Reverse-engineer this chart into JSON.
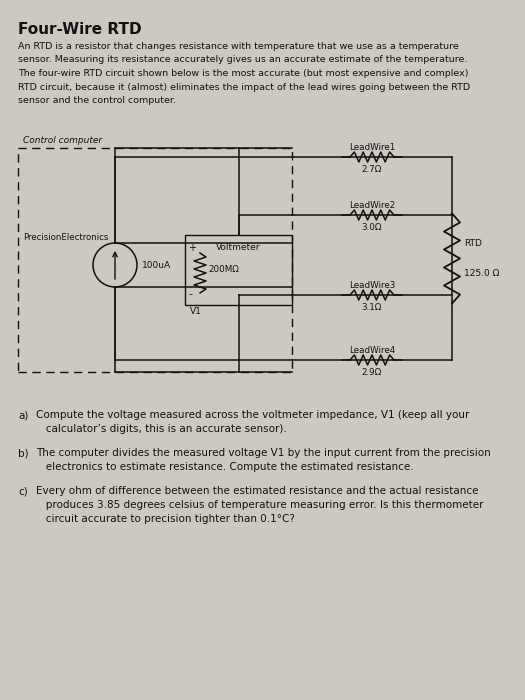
{
  "title": "Four-Wire RTD",
  "intro_text": "An RTD is a resistor that changes resistance with temperature that we use as a temperature\nsensor. Measuring its resistance accurately gives us an accurate estimate of the temperature.\nThe four-wire RTD circuit shown below is the most accurate (but most expensive and complex)\nRTD circuit, because it (almost) eliminates the impact of the lead wires going between the RTD\nsensor and the control computer.",
  "control_computer_label": "Control computer",
  "precision_electronics_label": "PrecisionElectronics",
  "current_label": "100uA",
  "voltmeter_label": "Voltmeter",
  "voltmeter_impedance": "200MΩ",
  "v1_label": "V1",
  "plus_label": "+",
  "minus_label": "-",
  "leadwire1_label": "LeadWire1",
  "leadwire1_val": "2.7Ω",
  "leadwire2_label": "LeadWire2",
  "leadwire2_val": "3.0Ω",
  "leadwire3_label": "LeadWire3",
  "leadwire3_val": "3.1Ω",
  "leadwire4_label": "LeadWire4",
  "leadwire4_val": "2.9Ω",
  "rtd_label": "RTD",
  "rtd_val": "125.0 Ω",
  "q_a_prefix": "a)",
  "q_a_text": "Compute the voltage measured across the voltmeter impedance, V1 (keep all your\n   calculator’s digits, this is an accurate sensor).",
  "q_b_prefix": "b)",
  "q_b_text": "The computer divides the measured voltage V1 by the input current from the precision\n   electronics to estimate resistance. Compute the estimated resistance.",
  "q_c_prefix": "c)",
  "q_c_text": "Every ohm of difference between the estimated resistance and the actual resistance\n   produces 3.85 degrees celsius of temperature measuring error. Is this thermometer\n   circuit accurate to precision tighter than 0.1°C?",
  "bg_color": "#cdc9c0",
  "text_color": "#111111",
  "line_color": "#111111"
}
